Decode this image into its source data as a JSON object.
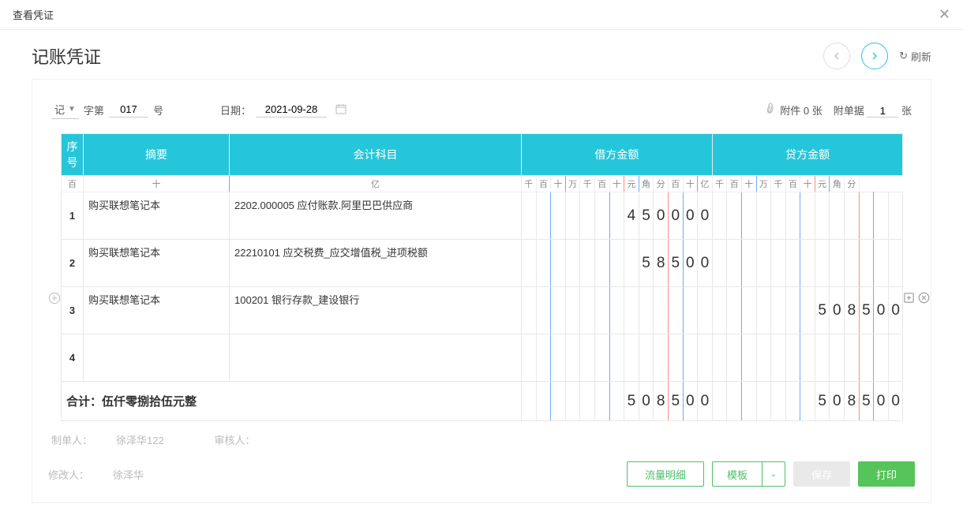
{
  "titlebar": {
    "title": "查看凭证"
  },
  "page": {
    "title": "记账凭证",
    "refresh": "刷新"
  },
  "meta": {
    "category": "记",
    "zi_di": "字第",
    "voucher_no": "017",
    "hao": "号",
    "date_label": "日期：",
    "date": "2021-09-28",
    "attach_label": "附件 0 张",
    "receipt_label": "附单据",
    "receipt_count": "1",
    "zhang": "张"
  },
  "columns": {
    "seq": "序号",
    "summary": "摘要",
    "account": "会计科目",
    "debit": "借方金额",
    "credit": "贷方金额"
  },
  "digit_labels": [
    "百",
    "十",
    "亿",
    "千",
    "百",
    "十",
    "万",
    "千",
    "百",
    "十",
    "元",
    "角",
    "分"
  ],
  "rows": [
    {
      "seq": "1",
      "summary": "购买联想笔记本",
      "account": "2202.000005 应付账款.阿里巴巴供应商",
      "debit": "450000",
      "credit": ""
    },
    {
      "seq": "2",
      "summary": "购买联想笔记本",
      "account": "22210101 应交税费_应交增值税_进项税额",
      "debit": "58500",
      "credit": ""
    },
    {
      "seq": "3",
      "summary": "购买联想笔记本",
      "account": "100201 银行存款_建设银行",
      "debit": "",
      "credit": "508500"
    },
    {
      "seq": "4",
      "summary": "",
      "account": "",
      "debit": "",
      "credit": ""
    }
  ],
  "total": {
    "label": "合计：伍仟零捌拾伍元整",
    "debit": "508500",
    "credit": "508500"
  },
  "footer": {
    "preparer_label": "制单人：",
    "preparer": "徐泽华122",
    "auditor_label": "审核人：",
    "modifier_label": "修改人：",
    "modifier": "徐泽华"
  },
  "buttons": {
    "flow": "流量明细",
    "template": "模板",
    "save": "保存",
    "print": "打印"
  },
  "colors": {
    "teal": "#26c6da",
    "green": "#55c45a",
    "green_border": "#4cc06a",
    "grid": "#e8e8e8",
    "blue_rule": "#6fa8ff",
    "red_rule": "#ff8a8a"
  }
}
